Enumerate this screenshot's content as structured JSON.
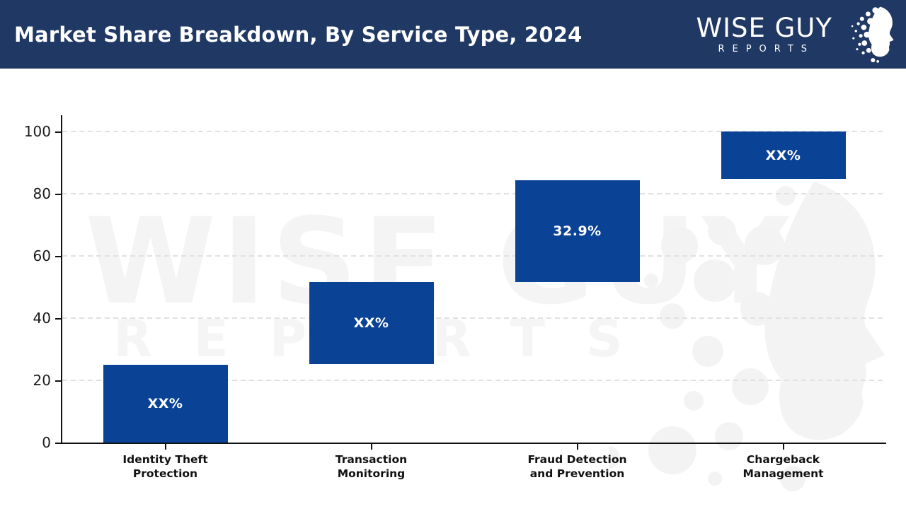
{
  "header": {
    "title": "Market Share Breakdown, By Service Type, 2024",
    "logo": {
      "line1": "WISE GUY",
      "line2": "REPORTS"
    }
  },
  "watermark": {
    "line1": "WISE GUY",
    "line2": "REPORTS"
  },
  "colors": {
    "header_bg": "#1F3864",
    "bar": "#0A4296",
    "axis": "#111111",
    "grid": "#e0e0e0",
    "bar_label_text": "#ffffff",
    "tick_text": "#1a1a1a",
    "watermark": "#f4f4f4"
  },
  "chart_data": {
    "type": "bar",
    "subtype": "floating-waterfall",
    "title": "Market Share Breakdown, By Service Type, 2024",
    "xlabel": "",
    "ylabel": "",
    "ylim": [
      0,
      105
    ],
    "y_ticks": [
      0,
      20,
      40,
      60,
      80,
      100
    ],
    "grid": "horizontal-dashed",
    "legend": "none",
    "categories": [
      "Identity Theft Protection",
      "Transaction Monitoring",
      "Fraud Detection and Prevention",
      "Chargeback Management"
    ],
    "segments": [
      {
        "category": "Identity Theft Protection",
        "lines": [
          "Identity Theft",
          "Protection"
        ],
        "start": 0,
        "end": 24.9,
        "value": 24.9,
        "label": "XX%"
      },
      {
        "category": "Transaction Monitoring",
        "lines": [
          "Transaction",
          "Monitoring"
        ],
        "start": 25.3,
        "end": 51.5,
        "value": 26.2,
        "label": "XX%"
      },
      {
        "category": "Fraud Detection and Prevention",
        "lines": [
          "Fraud Detection",
          "and Prevention"
        ],
        "start": 51.5,
        "end": 84.4,
        "value": 32.9,
        "label": "32.9%"
      },
      {
        "category": "Chargeback Management",
        "lines": [
          "Chargeback",
          "Management"
        ],
        "start": 84.7,
        "end": 100,
        "value": 15.3,
        "label": "XX%"
      }
    ]
  }
}
